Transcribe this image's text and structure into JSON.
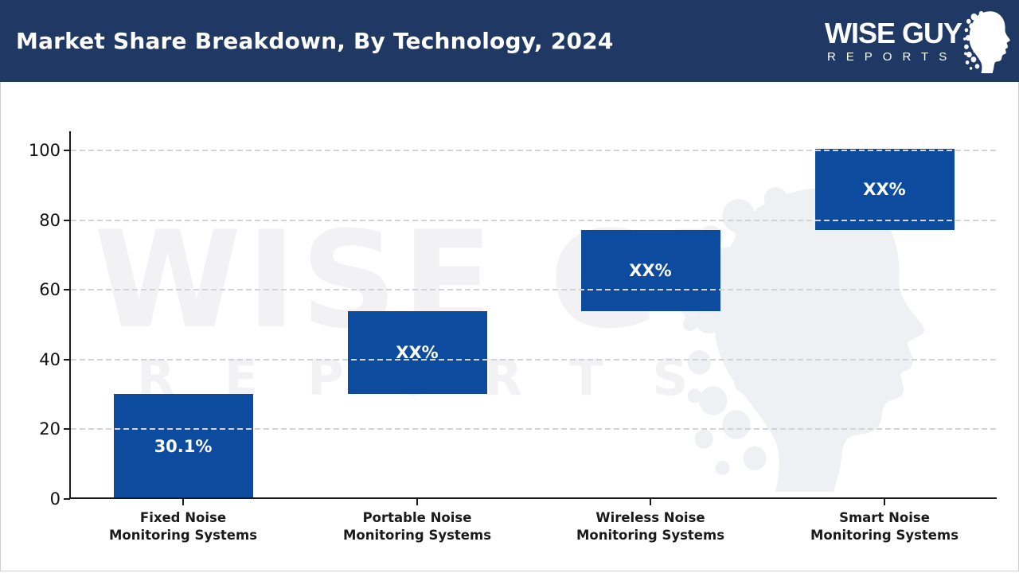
{
  "header": {
    "title": "Market Share Breakdown, By Technology, 2024",
    "bg_color": "#1f3864",
    "logo": {
      "line1": "WISE GUY",
      "line2": "REPORTS"
    }
  },
  "watermark": {
    "line1": "WISE GUY",
    "line2": "REPORTS"
  },
  "colors": {
    "header_bg": "#1f3864",
    "bar_blue": "#0c4b9e",
    "grid_gray": "#d4d4d4",
    "axis_black": "#1a1a1a",
    "watermark_gray": "#eff0f3"
  },
  "chart_data": {
    "type": "bar",
    "subtype": "waterfall",
    "title": "Market Share Breakdown, By Technology, 2024",
    "xlabel": "",
    "ylabel": "",
    "grid": "horizontal-dashed",
    "legend": "none",
    "ylim": [
      0,
      105.5
    ],
    "yticks": [
      0,
      20,
      40,
      60,
      80,
      100
    ],
    "bar_color": "#0c4b9e",
    "value_label_color": "#ffffff",
    "categories": [
      "Fixed Noise Monitoring Systems",
      "Portable Noise Monitoring Systems",
      "Wireless Noise Monitoring Systems",
      "Smart Noise Monitoring Systems"
    ],
    "category_label_lines": [
      [
        "Fixed Noise",
        "Monitoring Systems"
      ],
      [
        "Portable Noise",
        "Monitoring Systems"
      ],
      [
        "Wireless Noise",
        "Monitoring Systems"
      ],
      [
        "Smart Noise",
        "Monitoring Systems"
      ]
    ],
    "segments": [
      {
        "category": "Fixed Noise Monitoring Systems",
        "start": 0,
        "end": 30.1,
        "value": 30.1,
        "label": "30.1%"
      },
      {
        "category": "Portable Noise Monitoring Systems",
        "start": 30.1,
        "end": 53.9,
        "value": 23.8,
        "label": "XX%"
      },
      {
        "category": "Wireless Noise Monitoring Systems",
        "start": 53.9,
        "end": 77.2,
        "value": 23.3,
        "label": "XX%"
      },
      {
        "category": "Smart Noise Monitoring Systems",
        "start": 77.2,
        "end": 100.5,
        "value": 23.3,
        "label": "XX%"
      }
    ]
  }
}
